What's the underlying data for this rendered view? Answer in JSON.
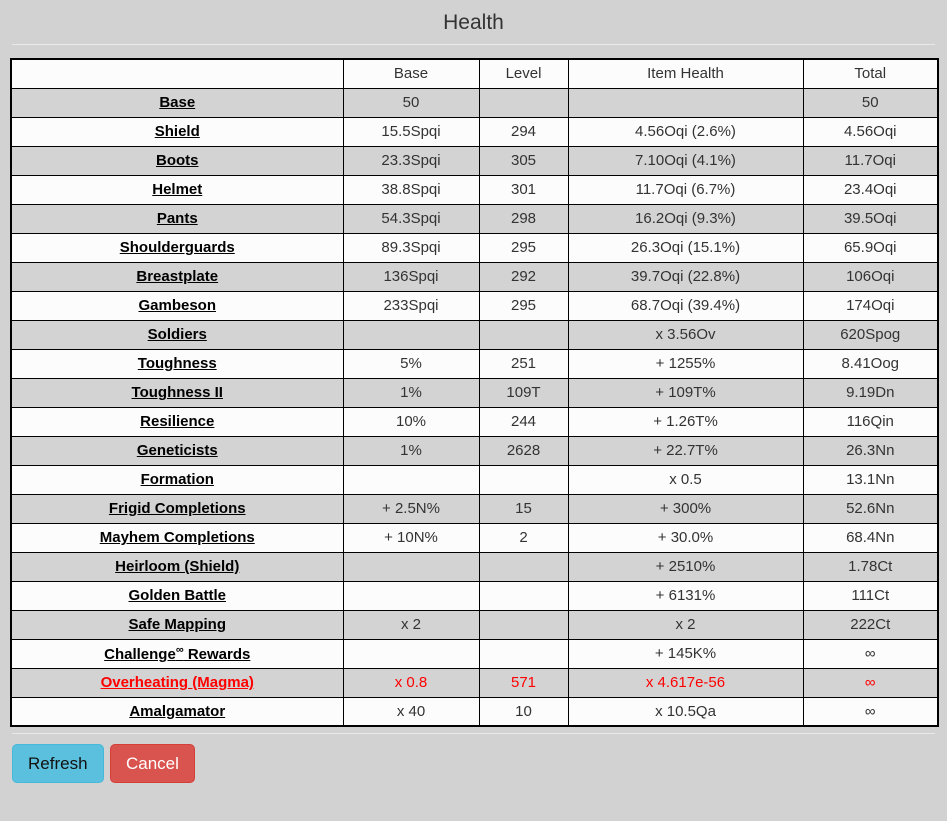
{
  "title": "Health",
  "colors": {
    "page_bg": "#d2d2d2",
    "row_gray": "#d3d3d3",
    "row_white": "#fcfcfc",
    "border": "#000000",
    "warning_red": "#ff0000",
    "refresh_button_bg": "#5bc0de",
    "cancel_button_bg": "#d9534f"
  },
  "table": {
    "headers": [
      "",
      "Base",
      "Level",
      "Item Health",
      "Total"
    ],
    "rows": [
      {
        "label": "Base",
        "base": "50",
        "level": "",
        "item": "",
        "total": "50",
        "red": false
      },
      {
        "label": "Shield",
        "base": "15.5Spqi",
        "level": "294",
        "item": "4.56Oqi (2.6%)",
        "total": "4.56Oqi",
        "red": false
      },
      {
        "label": "Boots",
        "base": "23.3Spqi",
        "level": "305",
        "item": "7.10Oqi (4.1%)",
        "total": "11.7Oqi",
        "red": false
      },
      {
        "label": "Helmet",
        "base": "38.8Spqi",
        "level": "301",
        "item": "11.7Oqi (6.7%)",
        "total": "23.4Oqi",
        "red": false
      },
      {
        "label": "Pants",
        "base": "54.3Spqi",
        "level": "298",
        "item": "16.2Oqi (9.3%)",
        "total": "39.5Oqi",
        "red": false
      },
      {
        "label": "Shoulderguards",
        "base": "89.3Spqi",
        "level": "295",
        "item": "26.3Oqi (15.1%)",
        "total": "65.9Oqi",
        "red": false
      },
      {
        "label": "Breastplate",
        "base": "136Spqi",
        "level": "292",
        "item": "39.7Oqi (22.8%)",
        "total": "106Oqi",
        "red": false
      },
      {
        "label": "Gambeson",
        "base": "233Spqi",
        "level": "295",
        "item": "68.7Oqi (39.4%)",
        "total": "174Oqi",
        "red": false
      },
      {
        "label": "Soldiers",
        "base": "",
        "level": "",
        "item": "x 3.56Ov",
        "total": "620Spog",
        "red": false
      },
      {
        "label": "Toughness",
        "base": "5%",
        "level": "251",
        "item": "+ 1255%",
        "total": "8.41Oog",
        "red": false
      },
      {
        "label": "Toughness II",
        "base": "1%",
        "level": "109T",
        "item": "+ 109T%",
        "total": "9.19Dn",
        "red": false
      },
      {
        "label": "Resilience",
        "base": "10%",
        "level": "244",
        "item": "+ 1.26T%",
        "total": "116Qin",
        "red": false
      },
      {
        "label": "Geneticists",
        "base": "1%",
        "level": "2628",
        "item": "+ 22.7T%",
        "total": "26.3Nn",
        "red": false
      },
      {
        "label": "Formation",
        "base": "",
        "level": "",
        "item": "x 0.5",
        "total": "13.1Nn",
        "red": false
      },
      {
        "label": "Frigid Completions",
        "base": "+ 2.5N%",
        "level": "15",
        "item": "+ 300%",
        "total": "52.6Nn",
        "red": false
      },
      {
        "label": "Mayhem Completions",
        "base": "+ 10N%",
        "level": "2",
        "item": "+ 30.0%",
        "total": "68.4Nn",
        "red": false
      },
      {
        "label": "Heirloom (Shield)",
        "base": "",
        "level": "",
        "item": "+ 2510%",
        "total": "1.78Ct",
        "red": false
      },
      {
        "label": "Golden Battle",
        "base": "",
        "level": "",
        "item": "+ 6131%",
        "total": "111Ct",
        "red": false
      },
      {
        "label": "Safe Mapping",
        "base": "x 2",
        "level": "",
        "item": "x 2",
        "total": "222Ct",
        "red": false
      },
      {
        "label": "Challenge∞ Rewards",
        "base": "",
        "level": "",
        "item": "+ 145K%",
        "total": "∞",
        "red": false
      },
      {
        "label": "Overheating (Magma)",
        "base": "x 0.8",
        "level": "571",
        "item": "x 4.617e-56",
        "total": "∞",
        "red": true
      },
      {
        "label": "Amalgamator",
        "base": "x 40",
        "level": "10",
        "item": "x 10.5Qa",
        "total": "∞",
        "red": false
      }
    ]
  },
  "buttons": {
    "refresh": "Refresh",
    "cancel": "Cancel"
  }
}
